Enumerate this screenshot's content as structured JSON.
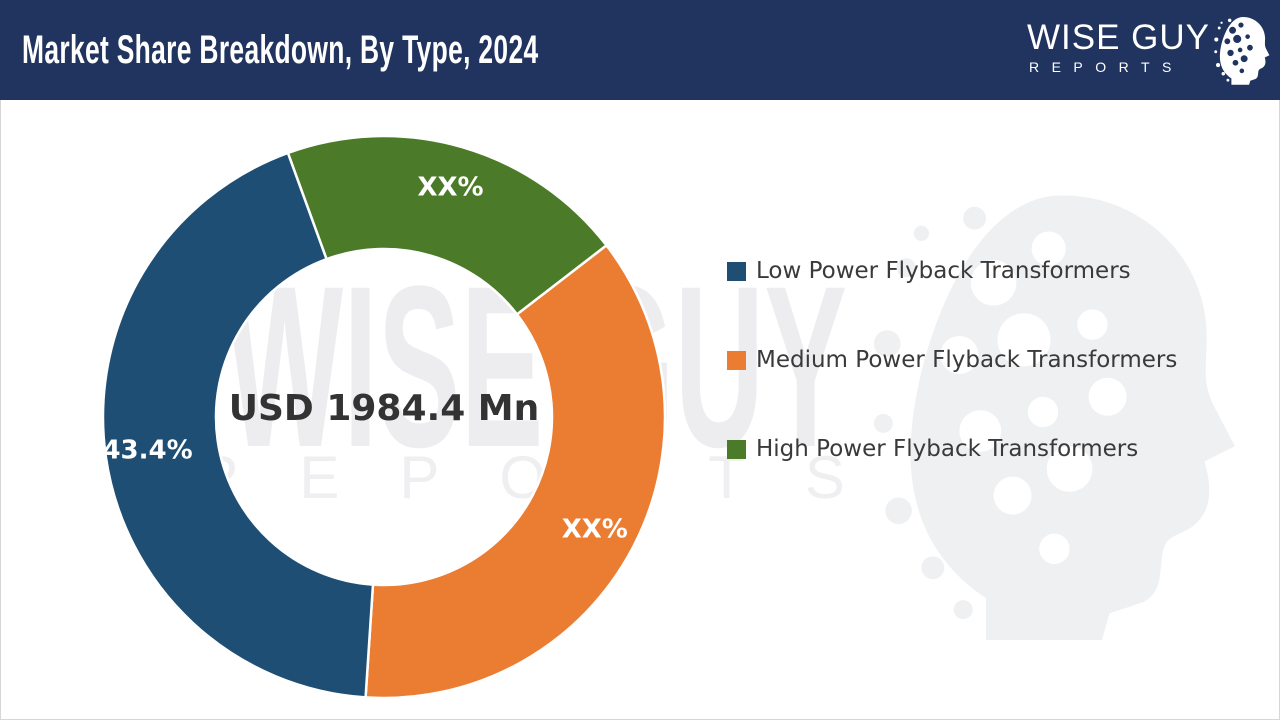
{
  "header": {
    "title": "Market Share Breakdown, By Type, 2024",
    "bg_color": "#20345f",
    "logo": {
      "name": "WISE GUY",
      "sub": "REPORTS"
    }
  },
  "watermark": {
    "wordmark": "WISE GUY",
    "sub": "REPORTS"
  },
  "chart_data": {
    "type": "pie",
    "subtype": "donut",
    "title": "Market Share Breakdown, By Type, 2024",
    "center_label": "USD 1984.4 Mn",
    "start_angle_deg": -20,
    "direction": "clockwise",
    "inner_radius_ratio": 0.6,
    "legend_position": "right",
    "segments": [
      {
        "name": "High Power Flyback Transformers",
        "display_label": "XX%",
        "value_pct": 20.1,
        "color": "#4b7b28"
      },
      {
        "name": "Medium Power Flyback Transformers",
        "display_label": "XX%",
        "value_pct": 36.5,
        "color": "#eb7d33"
      },
      {
        "name": "Low Power Flyback Transformers",
        "display_label": "43.4%",
        "value_pct": 43.4,
        "color": "#1f4e74"
      }
    ]
  },
  "legend": {
    "items": [
      {
        "label": "Low Power Flyback Transformers",
        "color": "#1f4e74"
      },
      {
        "label": "Medium Power Flyback Transformers",
        "color": "#eb7d33"
      },
      {
        "label": "High Power Flyback Transformers",
        "color": "#4b7b28"
      }
    ]
  },
  "colors": {
    "header_bg": "#20345f",
    "center_text": "#333333",
    "legend_text": "#3a3a3a",
    "slice_label_text": "#ffffff"
  }
}
